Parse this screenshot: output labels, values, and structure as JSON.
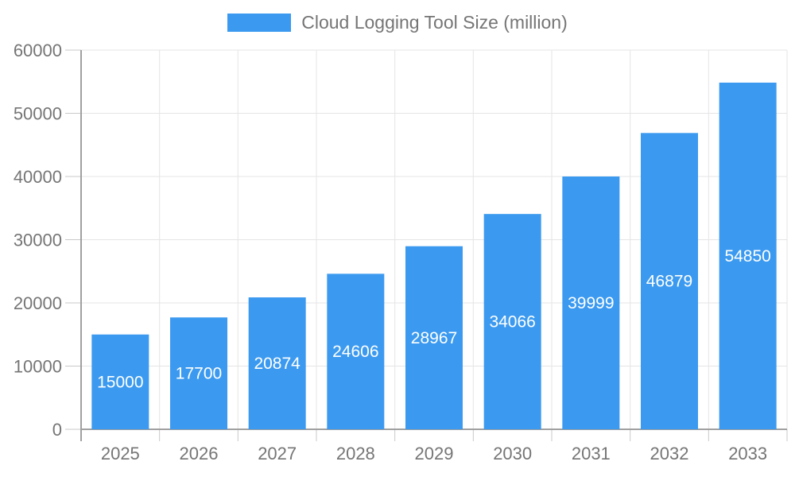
{
  "chart_data": {
    "type": "bar",
    "title": "Cloud Logging Tool Size (million)",
    "categories": [
      "2025",
      "2026",
      "2027",
      "2028",
      "2029",
      "2030",
      "2031",
      "2032",
      "2033"
    ],
    "values": [
      15000,
      17700,
      20874,
      24606,
      28967,
      34066,
      39999,
      46879,
      54850
    ],
    "xlabel": "",
    "ylabel": "",
    "ylim": [
      0,
      60000
    ],
    "y_ticks": [
      0,
      10000,
      20000,
      30000,
      40000,
      50000,
      60000
    ],
    "grid": true,
    "legend_position": "top",
    "colors": {
      "bar": "#3b9af0",
      "value_label": "#ffffff",
      "grid": "#e5e5e5",
      "axis": "#a0a0a0",
      "tick": "#c9c9c9",
      "text": "#757575"
    }
  }
}
